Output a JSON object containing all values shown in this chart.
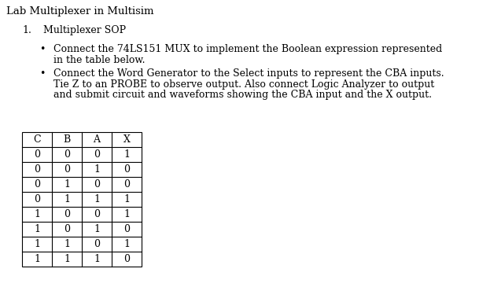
{
  "title": "Lab Multiplexer in Multisim",
  "section_number": "1.",
  "section_title": "Multiplexer SOP",
  "bullets": [
    [
      "Connect the 74LS151 MUX to implement the Boolean expression represented",
      "in the table below."
    ],
    [
      "Connect the Word Generator to the Select inputs to represent the CBA inputs.",
      "Tie Z to an PROBE to observe output. Also connect Logic Analyzer to output",
      "and submit circuit and waveforms showing the CBA input and the X output."
    ]
  ],
  "table_headers": [
    "C",
    "B",
    "A",
    "X"
  ],
  "table_data": [
    [
      0,
      0,
      0,
      1
    ],
    [
      0,
      0,
      1,
      0
    ],
    [
      0,
      1,
      0,
      0
    ],
    [
      0,
      1,
      1,
      1
    ],
    [
      1,
      0,
      0,
      1
    ],
    [
      1,
      0,
      1,
      0
    ],
    [
      1,
      1,
      0,
      1
    ],
    [
      1,
      1,
      1,
      0
    ]
  ],
  "bg_color": "#ffffff",
  "text_color": "#000000",
  "font_family": "DejaVu Serif",
  "title_fontsize": 9.5,
  "body_fontsize": 9,
  "table_fontsize": 9
}
